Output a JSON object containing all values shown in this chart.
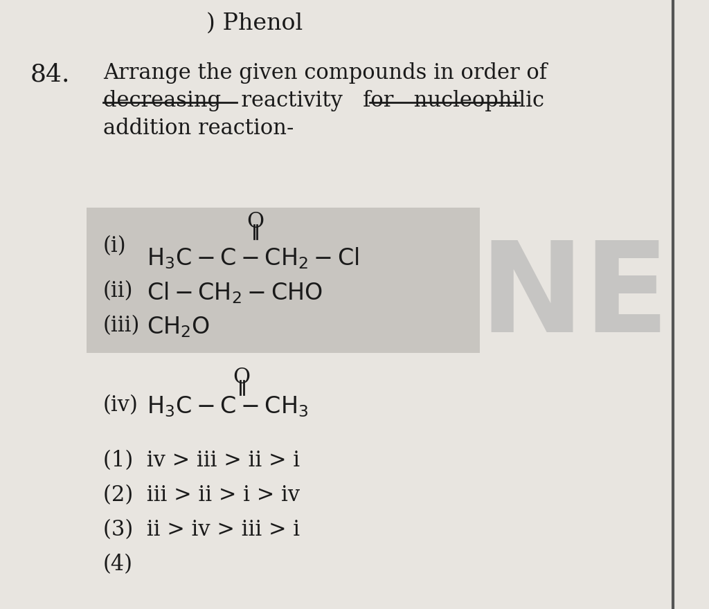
{
  "page_bg": "#e8e5e0",
  "highlight_bg": "#c8c5c0",
  "text_color": "#1a1a1a",
  "ne_color": "#b0b0b0",
  "title_partial": ") Phenol",
  "q_num": "84.",
  "q_line1": "Arrange the given compounds in order of",
  "q_line2": "decreasing   reactivity   for   nucleophilic",
  "q_line3": "addition reaction-",
  "i_label": "(i)",
  "ii_label": "(ii)",
  "iii_label": "(iii)",
  "iv_label": "(iv)",
  "opt1": "(1)  iv > iii > ii > i",
  "opt2": "(2)  iii > ii > i > iv",
  "opt3": "(3)  ii > iv > iii > i",
  "opt4": "(4)",
  "fs": 22,
  "fs_formula": 22,
  "fs_ne": 130
}
